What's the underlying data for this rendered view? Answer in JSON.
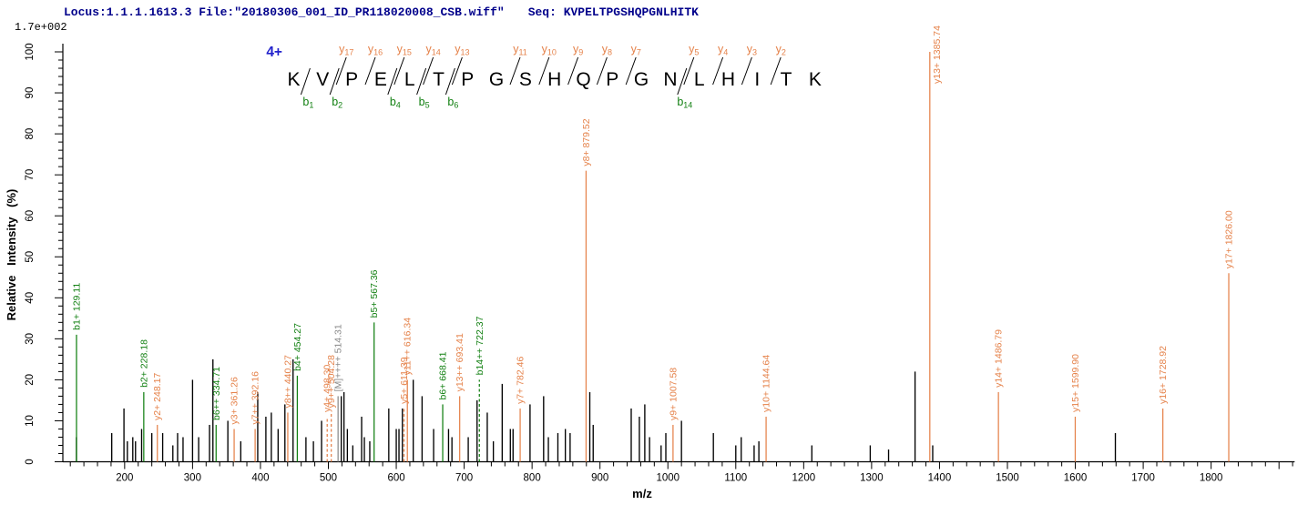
{
  "header": {
    "locus_file": "Locus:1.1.1.1613.3 File:\"20180306_001_ID_PR118020008_CSB.wiff\"",
    "seq_label": "Seq: KVPELTPGSHQPGNLHITK",
    "intensity_scale": "1.7e+002"
  },
  "colors": {
    "b_ion": "#128012",
    "y_ion": "#e5824a",
    "precursor": "#8a8a8a",
    "peak_black": "#000000",
    "header_text": "#00008b",
    "charge_blue": "#2222cc",
    "axis": "#000000"
  },
  "sequence_panel": {
    "charge_label": "4+",
    "residues": [
      "K",
      "V",
      "P",
      "E",
      "L",
      "T",
      "P",
      "G",
      "S",
      "H",
      "Q",
      "P",
      "G",
      "N",
      "L",
      "H",
      "I",
      "T",
      "K"
    ],
    "y_ions": [
      {
        "base": "y",
        "sub": "17",
        "gap": 2
      },
      {
        "base": "y",
        "sub": "16",
        "gap": 3
      },
      {
        "base": "y",
        "sub": "15",
        "gap": 4
      },
      {
        "base": "y",
        "sub": "14",
        "gap": 5
      },
      {
        "base": "y",
        "sub": "13",
        "gap": 6
      },
      {
        "base": "y",
        "sub": "11",
        "gap": 8
      },
      {
        "base": "y",
        "sub": "10",
        "gap": 9
      },
      {
        "base": "y",
        "sub": "9",
        "gap": 10
      },
      {
        "base": "y",
        "sub": "8",
        "gap": 11
      },
      {
        "base": "y",
        "sub": "7",
        "gap": 12
      },
      {
        "base": "y",
        "sub": "5",
        "gap": 14
      },
      {
        "base": "y",
        "sub": "4",
        "gap": 15
      },
      {
        "base": "y",
        "sub": "3",
        "gap": 16
      },
      {
        "base": "y",
        "sub": "2",
        "gap": 17
      }
    ],
    "b_ions": [
      {
        "base": "b",
        "sub": "1",
        "gap": 1
      },
      {
        "base": "b",
        "sub": "2",
        "gap": 2
      },
      {
        "base": "b",
        "sub": "4",
        "gap": 4
      },
      {
        "base": "b",
        "sub": "5",
        "gap": 5
      },
      {
        "base": "b",
        "sub": "6",
        "gap": 6
      },
      {
        "base": "b",
        "sub": "14",
        "gap": 14
      }
    ]
  },
  "axes": {
    "x": {
      "label": "m/z",
      "min": 109,
      "max": 1923,
      "major_step": 100,
      "minor_step": 20,
      "major_tick_labels": [
        200,
        300,
        400,
        500,
        600,
        700,
        800,
        900,
        1000,
        1100,
        1200,
        1300,
        1400,
        1500,
        1600,
        1700,
        1800
      ]
    },
    "y": {
      "label": "Relative Intensity (%)",
      "min": 0,
      "max": 100,
      "major_step": 10,
      "minor_step": 2,
      "tick_labels": [
        0,
        10,
        20,
        30,
        40,
        50,
        60,
        70,
        80,
        90,
        100
      ]
    }
  },
  "chart_data": {
    "type": "bar",
    "subtype": "ms2-fragment-spectrum",
    "xlabel": "m/z",
    "ylabel": "Relative Intensity (%)",
    "xlim": [
      109,
      1923
    ],
    "ylim": [
      0,
      100
    ],
    "labeled_peaks": [
      {
        "label": "b1+ 129.11",
        "mz": 129.11,
        "intensity": 31,
        "series": "b",
        "dashed": false
      },
      {
        "label": "b2+ 228.18",
        "mz": 228.18,
        "intensity": 17,
        "series": "b",
        "dashed": false
      },
      {
        "label": "y2+ 248.17",
        "mz": 248.17,
        "intensity": 9,
        "series": "y",
        "dashed": false
      },
      {
        "label": "b6++ 334.71",
        "mz": 334.71,
        "intensity": 9,
        "series": "b",
        "dashed": false
      },
      {
        "label": "y3+ 361.26",
        "mz": 361.26,
        "intensity": 8,
        "series": "y",
        "dashed": false
      },
      {
        "label": "y7++ 392.16",
        "mz": 392.16,
        "intensity": 8,
        "series": "y",
        "dashed": false
      },
      {
        "label": "y8++ 440.27",
        "mz": 440.27,
        "intensity": 12,
        "series": "y",
        "dashed": false
      },
      {
        "label": "b4+ 454.27",
        "mz": 454.27,
        "intensity": 21,
        "series": "b",
        "dashed": false
      },
      {
        "label": "y4+ 498.30",
        "mz": 498.3,
        "intensity": 11,
        "series": "y",
        "dashed": true
      },
      {
        "label": "y9++ 504.28",
        "mz": 504.28,
        "intensity": 12,
        "series": "y",
        "dashed": true
      },
      {
        "label": "[M]++++ 514.31",
        "mz": 514.31,
        "intensity": 16,
        "series": "M",
        "dashed": false
      },
      {
        "label": "b5+ 567.36",
        "mz": 567.36,
        "intensity": 34,
        "series": "b",
        "dashed": false
      },
      {
        "label": "y5+ 611.39",
        "mz": 611.39,
        "intensity": 13,
        "series": "y",
        "dashed": true
      },
      {
        "label": "y11++ 616.34",
        "mz": 616.34,
        "intensity": 20,
        "series": "y",
        "dashed": false
      },
      {
        "label": "b6+ 668.41",
        "mz": 668.41,
        "intensity": 14,
        "series": "b",
        "dashed": false
      },
      {
        "label": "y13++ 693.41",
        "mz": 693.41,
        "intensity": 16,
        "series": "y",
        "dashed": false
      },
      {
        "label": "b14++ 722.37",
        "mz": 722.37,
        "intensity": 20,
        "series": "b",
        "dashed": true
      },
      {
        "label": "y7+ 782.46",
        "mz": 782.46,
        "intensity": 13,
        "series": "y",
        "dashed": false
      },
      {
        "label": "y8+ 879.52",
        "mz": 879.52,
        "intensity": 71,
        "series": "y",
        "dashed": false
      },
      {
        "label": "y9+ 1007.58",
        "mz": 1007.58,
        "intensity": 9,
        "series": "y",
        "dashed": false
      },
      {
        "label": "y10+ 1144.64",
        "mz": 1144.64,
        "intensity": 11,
        "series": "y",
        "dashed": false
      },
      {
        "label": "y13+ 1385.74",
        "mz": 1385.74,
        "intensity": 100,
        "series": "y",
        "dashed": false
      },
      {
        "label": "y14+ 1486.79",
        "mz": 1486.79,
        "intensity": 17,
        "series": "y",
        "dashed": false
      },
      {
        "label": "y15+ 1599.90",
        "mz": 1599.9,
        "intensity": 11,
        "series": "y",
        "dashed": false
      },
      {
        "label": "y16+ 1728.92",
        "mz": 1728.92,
        "intensity": 13,
        "series": "y",
        "dashed": false
      },
      {
        "label": "y17+ 1826.00",
        "mz": 1826.0,
        "intensity": 46,
        "series": "y",
        "dashed": false
      }
    ],
    "unlabeled_peaks": [
      [
        129,
        6
      ],
      [
        181,
        7
      ],
      [
        199,
        13
      ],
      [
        204,
        5
      ],
      [
        212,
        6
      ],
      [
        216,
        5
      ],
      [
        225,
        8
      ],
      [
        240,
        7
      ],
      [
        256,
        7
      ],
      [
        271,
        4
      ],
      [
        278,
        7
      ],
      [
        286,
        6
      ],
      [
        300,
        20
      ],
      [
        309,
        6
      ],
      [
        325,
        9
      ],
      [
        330,
        25
      ],
      [
        352,
        10
      ],
      [
        371,
        5
      ],
      [
        396,
        17
      ],
      [
        408,
        11
      ],
      [
        416,
        12
      ],
      [
        426,
        8
      ],
      [
        436,
        14
      ],
      [
        448,
        25
      ],
      [
        467,
        6
      ],
      [
        478,
        5
      ],
      [
        490,
        10
      ],
      [
        519,
        16
      ],
      [
        523,
        17
      ],
      [
        528,
        8
      ],
      [
        536,
        4
      ],
      [
        549,
        11
      ],
      [
        553,
        6
      ],
      [
        561,
        5
      ],
      [
        589,
        13
      ],
      [
        600,
        8
      ],
      [
        604,
        8
      ],
      [
        609,
        13
      ],
      [
        625,
        20
      ],
      [
        638,
        16
      ],
      [
        655,
        8
      ],
      [
        677,
        8
      ],
      [
        682,
        6
      ],
      [
        706,
        6
      ],
      [
        719,
        15
      ],
      [
        734,
        12
      ],
      [
        743,
        5
      ],
      [
        756,
        19
      ],
      [
        768,
        8
      ],
      [
        772,
        8
      ],
      [
        797,
        14
      ],
      [
        817,
        16
      ],
      [
        824,
        6
      ],
      [
        838,
        7
      ],
      [
        849,
        8
      ],
      [
        856,
        7
      ],
      [
        885,
        17
      ],
      [
        890,
        9
      ],
      [
        946,
        13
      ],
      [
        958,
        11
      ],
      [
        966,
        14
      ],
      [
        973,
        6
      ],
      [
        990,
        4
      ],
      [
        997,
        7
      ],
      [
        1020,
        10
      ],
      [
        1067,
        7
      ],
      [
        1100,
        4
      ],
      [
        1108,
        6
      ],
      [
        1127,
        4
      ],
      [
        1134,
        5
      ],
      [
        1212,
        4
      ],
      [
        1298,
        4
      ],
      [
        1325,
        3
      ],
      [
        1364,
        22
      ],
      [
        1390,
        4
      ],
      [
        1659,
        7
      ]
    ]
  }
}
